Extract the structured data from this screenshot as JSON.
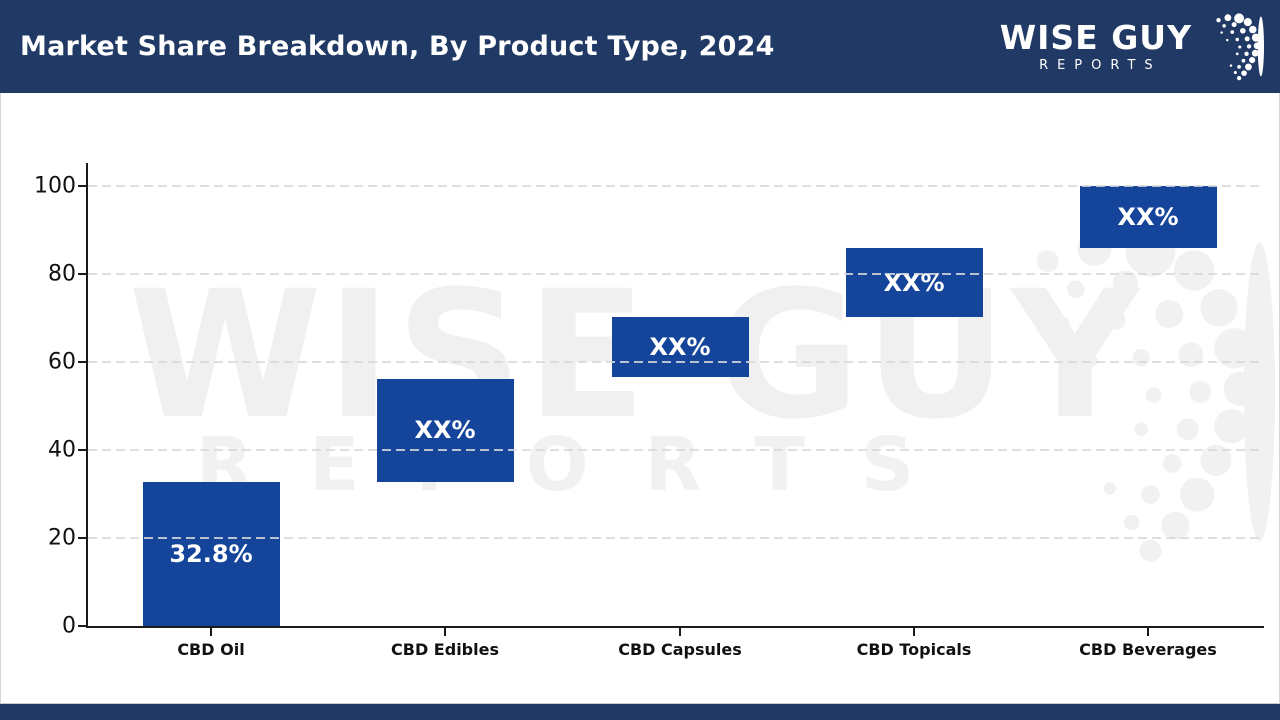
{
  "header": {
    "title": "Market Share Breakdown, By Product Type, 2024",
    "logo": {
      "line1": "WISE GUY",
      "line2": "REPORTS"
    },
    "bg_color": "#203a65"
  },
  "watermark": {
    "line1": "WISE GUY",
    "line2": "REPORTS"
  },
  "footer": {
    "bg_color": "#203a65"
  },
  "chart_data": {
    "type": "bar",
    "variant": "waterfall",
    "title": "Market Share Breakdown, By Product Type, 2024",
    "categories": [
      "CBD Oil",
      "CBD Edibles",
      "CBD Capsules",
      "CBD Topicals",
      "CBD Beverages"
    ],
    "segments": [
      {
        "category": "CBD Oil",
        "start": 0,
        "end": 32.8,
        "label": "32.8%"
      },
      {
        "category": "CBD Edibles",
        "start": 32.8,
        "end": 56.2,
        "label": "XX%"
      },
      {
        "category": "CBD Capsules",
        "start": 56.6,
        "end": 70.2,
        "label": "XX%"
      },
      {
        "category": "CBD Topicals",
        "start": 70.2,
        "end": 85.9,
        "label": "XX%"
      },
      {
        "category": "CBD Beverages",
        "start": 85.9,
        "end": 100,
        "label": "XX%"
      }
    ],
    "y_ticks": [
      0,
      20,
      40,
      60,
      80,
      100
    ],
    "ylim": [
      0,
      105
    ],
    "xlabel": "",
    "ylabel": "",
    "bar_color": "#15459b",
    "grid": "horizontal-dashed",
    "legend": "none"
  }
}
